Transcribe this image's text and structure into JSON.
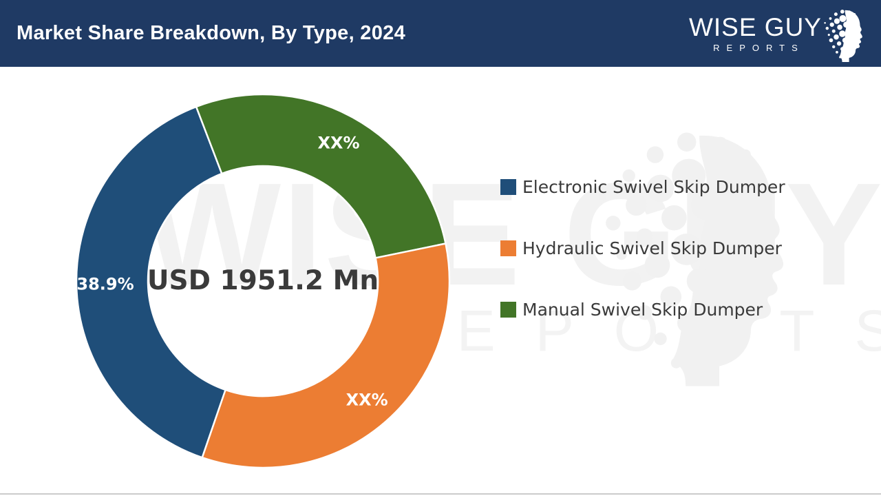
{
  "header": {
    "title": "Market Share Breakdown, By Type, 2024",
    "logo": {
      "line1": "WISE GUY",
      "line2": "REPORTS"
    }
  },
  "watermark": {
    "line1": "WISE GUY",
    "line2": "REPORTS"
  },
  "chart_data": {
    "type": "pie",
    "subtype": "donut",
    "title": "Market Share Breakdown, By Type, 2024",
    "center_label": "USD 1951.2 Mn",
    "start_angle_deg": 199,
    "direction": "clockwise",
    "inner_radius_ratio": 0.615,
    "segments": [
      {
        "name": "Electronic Swivel Skip Dumper",
        "label": "38.9%",
        "value_pct": 38.9,
        "color": "#1F4E79"
      },
      {
        "name": "Manual Swivel Skip Dumper",
        "label": "XX%",
        "value_pct": 27.6,
        "color": "#427527"
      },
      {
        "name": "Hydraulic Swivel Skip Dumper",
        "label": "XX%",
        "value_pct": 33.5,
        "color": "#EC7D33"
      }
    ],
    "legend_position": "right",
    "legend": [
      {
        "label": "Electronic Swivel Skip Dumper",
        "color": "#1F4E79"
      },
      {
        "label": "Hydraulic Swivel Skip Dumper",
        "color": "#EC7D33"
      },
      {
        "label": "Manual Swivel Skip Dumper",
        "color": "#427527"
      }
    ]
  },
  "colors": {
    "header_bg": "#1F3A64",
    "text_dark": "#3A3A3A",
    "watermark": "#F1F1F1",
    "bottom_line": "#CBCBCB"
  }
}
